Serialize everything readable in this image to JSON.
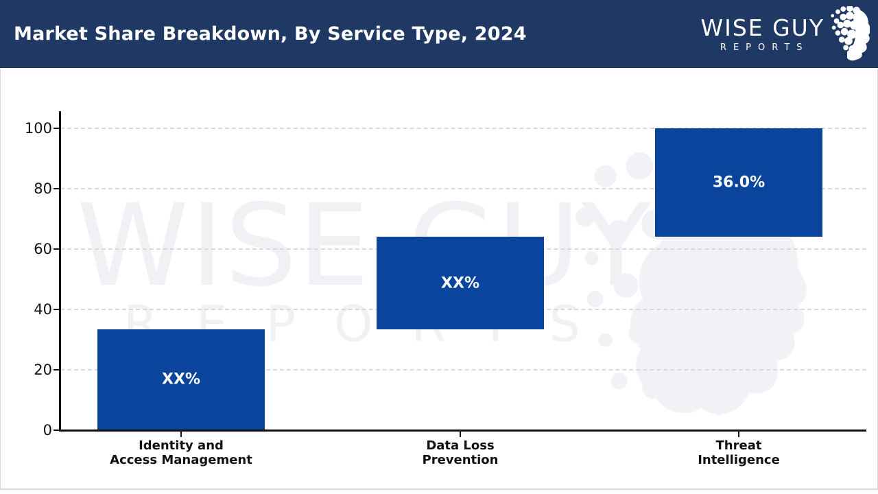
{
  "header": {
    "title": "Market Share Breakdown, By Service Type, 2024",
    "logo": {
      "name": "WISE GUY",
      "subname": "REPORTS"
    }
  },
  "watermark": {
    "line1": "WISE GUY",
    "line2": "REPORTS"
  },
  "chart_data": {
    "type": "bar",
    "subtype": "waterfall",
    "title": "Market Share Breakdown, By Service Type, 2024",
    "categories": [
      "Identity and\nAccess Management",
      "Data Loss\nPrevention",
      "Threat\nIntelligence"
    ],
    "bars": [
      {
        "category": "Identity and Access Management",
        "start": 0,
        "end": 33.5,
        "label": "XX%"
      },
      {
        "category": "Data Loss Prevention",
        "start": 33.5,
        "end": 64,
        "label": "XX%"
      },
      {
        "category": "Threat Intelligence",
        "start": 64,
        "end": 100,
        "label": "36.0%"
      }
    ],
    "yticks": [
      0,
      20,
      40,
      60,
      80,
      100
    ],
    "ylim": [
      0,
      105.7
    ],
    "xlabel": "",
    "ylabel": "",
    "legend": "none",
    "grid": "horizontal-dashed",
    "bar_color": "#0a449c",
    "value_label_color": "#ffffff"
  },
  "colors": {
    "header_bg": "#1f3864",
    "bar": "#0a449c",
    "axis": "#111111",
    "gridline": "#d9d9d9",
    "tick_text": "#111111",
    "watermark": "#eff1f4"
  }
}
